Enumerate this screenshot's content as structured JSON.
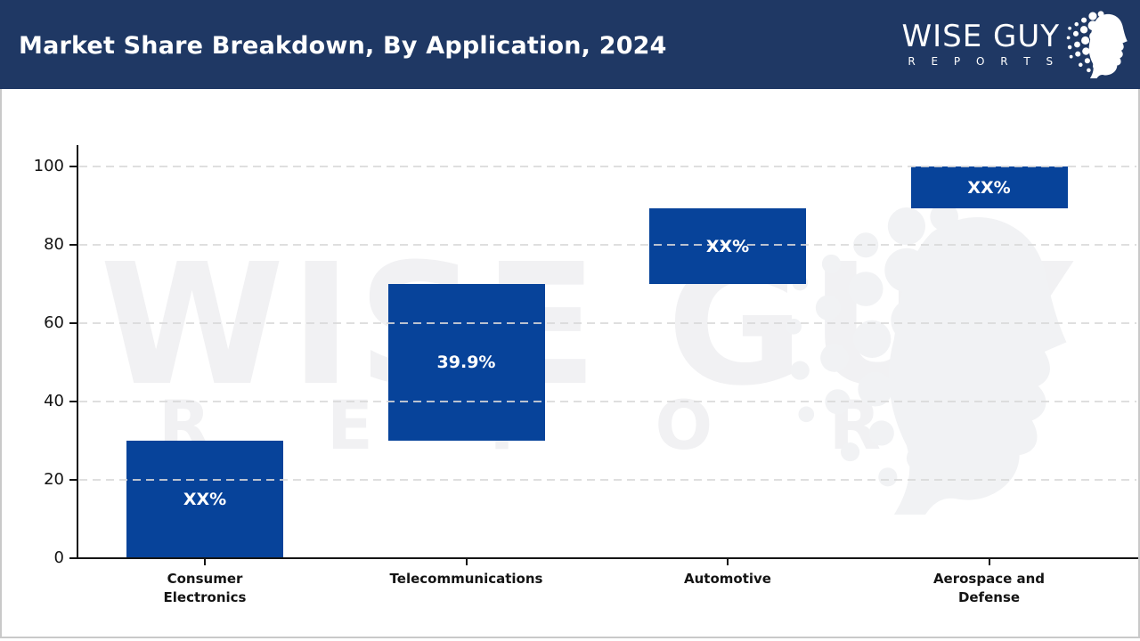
{
  "header": {
    "title": "Market Share Breakdown, By Application, 2024",
    "background_color": "#1f3864",
    "logo": {
      "line1": "WISE GUY",
      "line2": "R E P O R T S"
    }
  },
  "watermark": {
    "line1": "WISE GUY",
    "line2": "R E P O R T S"
  },
  "chart_data": {
    "type": "bar",
    "subtype": "waterfall (stacked progression, segments sum to 100%)",
    "title": "Market Share Breakdown, By Application, 2024",
    "categories": [
      "Consumer Electronics",
      "Telecommunications",
      "Automotive",
      "Aerospace and Defense"
    ],
    "category_lines": [
      [
        "Consumer",
        "Electronics"
      ],
      [
        "Telecommunications"
      ],
      [
        "Automotive"
      ],
      [
        "Aerospace and",
        "Defense"
      ]
    ],
    "segments": [
      {
        "category": "Consumer Electronics",
        "start": 0,
        "end": 30,
        "label": "XX%"
      },
      {
        "category": "Telecommunications",
        "start": 30,
        "end": 69.9,
        "label": "39.9%"
      },
      {
        "category": "Automotive",
        "start": 69.9,
        "end": 89.3,
        "label": "XX%"
      },
      {
        "category": "Aerospace and Defense",
        "start": 89.3,
        "end": 100,
        "label": "XX%"
      }
    ],
    "bar_labels": [
      "XX%",
      "39.9%",
      "XX%",
      "XX%"
    ],
    "only_explicit_value_shown": "39.9%",
    "yticks": [
      0,
      20,
      40,
      60,
      80,
      100
    ],
    "ylim": [
      0,
      105
    ],
    "xlabel": "",
    "ylabel": "",
    "grid": "horizontal dashed lines at y ticks, drawn over bars",
    "legend": "none",
    "bar_color": "#07439a",
    "bar_label_color": "#ffffff",
    "grid_color": "#d9d9d9",
    "axis_color": "#141414",
    "watermark_text": "WISE GUY REPORTS"
  }
}
